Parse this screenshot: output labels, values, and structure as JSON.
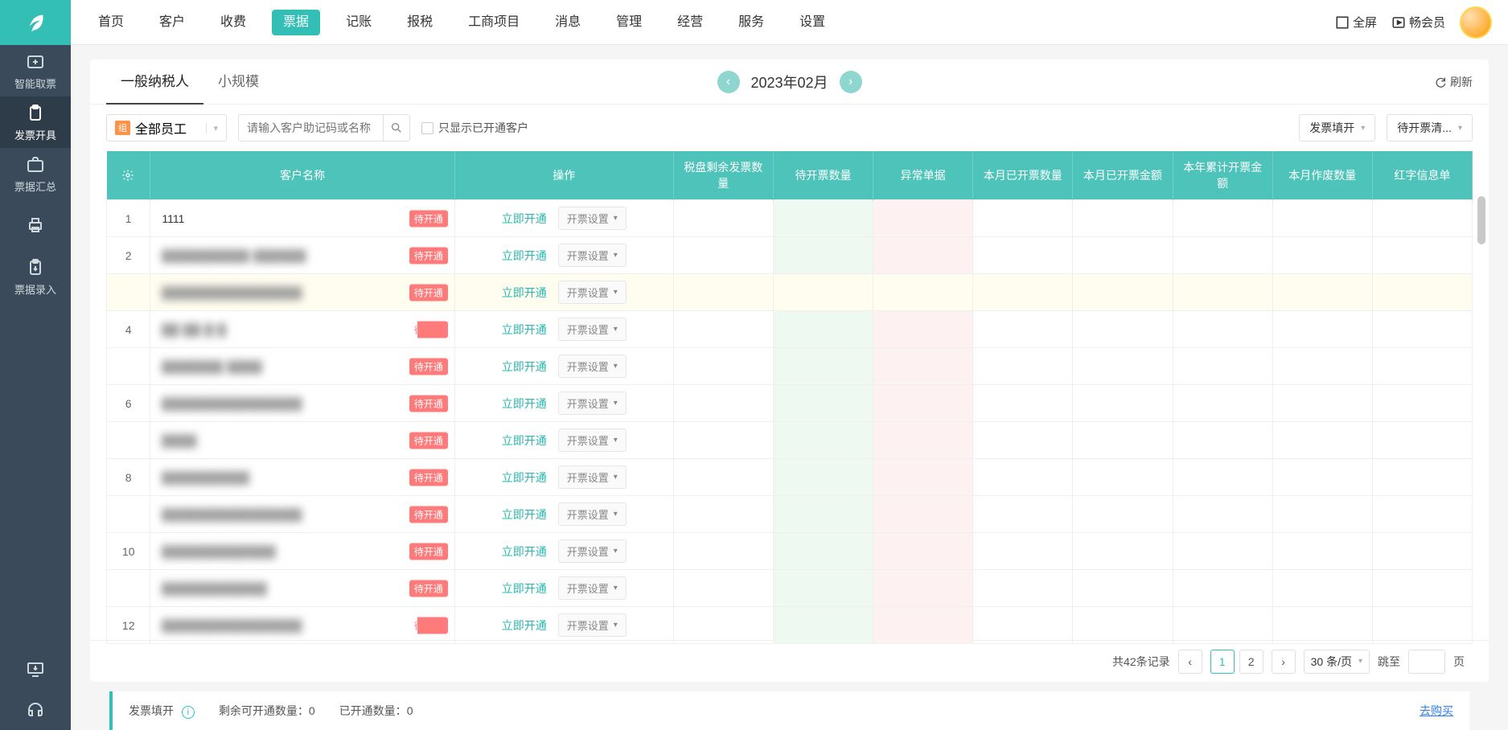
{
  "topnav": [
    "首页",
    "客户",
    "收费",
    "票据",
    "记账",
    "报税",
    "工商项目",
    "消息",
    "管理",
    "经营",
    "服务",
    "设置"
  ],
  "topnav_active_index": 3,
  "topbar_right": {
    "fullscreen": "全屏",
    "member": "畅会员"
  },
  "sidebar": [
    {
      "label": "智能取票",
      "icon": "plus-card-icon"
    },
    {
      "label": "发票开具",
      "icon": "clipboard-icon"
    },
    {
      "label": "票据汇总",
      "icon": "briefcase-icon"
    },
    {
      "label": "",
      "icon": "printer-icon"
    },
    {
      "label": "票据录入",
      "icon": "clipboard-down-icon"
    }
  ],
  "sidebar_active_index": 1,
  "tabs": [
    "一般纳税人",
    "小规模"
  ],
  "tabs_active_index": 0,
  "date_label": "2023年02月",
  "refresh_label": "刷新",
  "filters": {
    "emp_tag": "组",
    "emp_label": "全部员工",
    "search_placeholder": "请输入客户助记码或名称",
    "only_opened_label": "只显示已开通客户",
    "invoice_fill_label": "发票填开",
    "pending_list_label": "待开票清..."
  },
  "columns": [
    "",
    "客户名称",
    "操作",
    "税盘剩余发票数量",
    "待开票数量",
    "异常单据",
    "本月已开票数量",
    "本月已开票金额",
    "本年累计开票金额",
    "本月作废数量",
    "红字信息单"
  ],
  "row_badge": "待开通",
  "row_link": "立即开通",
  "row_dropdown": "开票设置",
  "rows": [
    {
      "idx": "1",
      "name": "1111",
      "blur": false,
      "badge_variant": 0,
      "hl": false
    },
    {
      "idx": "2",
      "name": "██████████  ██████",
      "blur": true,
      "badge_variant": 0,
      "hl": false
    },
    {
      "idx": "",
      "name": "████████████████",
      "blur": true,
      "badge_variant": 0,
      "hl": true
    },
    {
      "idx": "4",
      "name": "██  ██  █  █",
      "blur": true,
      "badge_variant": 1,
      "hl": false
    },
    {
      "idx": "",
      "name": "███████  ████",
      "blur": true,
      "badge_variant": 0,
      "hl": false
    },
    {
      "idx": "6",
      "name": "████████████████",
      "blur": true,
      "badge_variant": 0,
      "hl": false
    },
    {
      "idx": "",
      "name": "████",
      "blur": true,
      "badge_variant": 0,
      "hl": false
    },
    {
      "idx": "8",
      "name": "██████████",
      "blur": true,
      "badge_variant": 0,
      "hl": false
    },
    {
      "idx": "",
      "name": "████████████████",
      "blur": true,
      "badge_variant": 0,
      "hl": false
    },
    {
      "idx": "10",
      "name": "█████████████",
      "blur": true,
      "badge_variant": 0,
      "hl": false
    },
    {
      "idx": "",
      "name": "████████████",
      "blur": true,
      "badge_variant": 0,
      "hl": false
    },
    {
      "idx": "12",
      "name": "████████████████",
      "blur": true,
      "badge_variant": 1,
      "hl": false
    }
  ],
  "pagination": {
    "total_text": "共42条记录",
    "pages": [
      "1",
      "2"
    ],
    "active_page_index": 0,
    "page_size": "30 条/页",
    "jump_label_pre": "跳至",
    "jump_label_post": "页"
  },
  "footer": {
    "title": "发票填开",
    "remain_label": "剩余可开通数量：",
    "remain_value": "0",
    "opened_label": "已开通数量：",
    "opened_value": "0",
    "buy_label": "去购买"
  },
  "colors": {
    "primary": "#33bfb6",
    "sidebar_bg": "#3a4a5a",
    "badge_red": "#ff7a7a",
    "link": "#27b7ad",
    "green_cell": "#eefaf1",
    "red_cell": "#fdf1f1"
  }
}
